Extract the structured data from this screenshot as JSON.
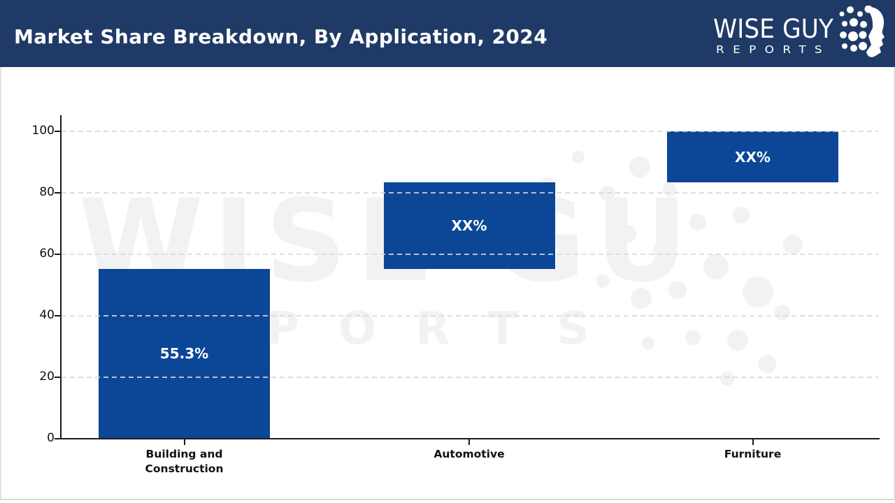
{
  "header": {
    "title": "Market Share Breakdown, By Application, 2024",
    "logo": {
      "brand": "WISE GUY",
      "sub": "REPORTS"
    }
  },
  "watermark": {
    "brand": "WISE GU",
    "sub": "REPORTS"
  },
  "chart_data": {
    "type": "bar",
    "subtype": "floating-waterfall",
    "title": "Market Share Breakdown, By Application, 2024",
    "categories": [
      "Building and Construction",
      "Automotive",
      "Furniture"
    ],
    "series": [
      {
        "name": "Market share (%)",
        "segments": [
          {
            "category": "Building and Construction",
            "from": 0,
            "to": 55.3,
            "label": "55.3%"
          },
          {
            "category": "Automotive",
            "from": 55.3,
            "to": 83.3,
            "label": "XX%"
          },
          {
            "category": "Furniture",
            "from": 83.3,
            "to": 100,
            "label": "XX%"
          }
        ]
      }
    ],
    "xlabel": "",
    "ylabel": "",
    "ylim": [
      0,
      105
    ],
    "y_ticks": [
      0,
      20,
      40,
      60,
      80,
      100
    ],
    "grid": "horizontal-dashed",
    "legend": "none",
    "bar_color": "#0b4697",
    "bar_label_color": "#ffffff"
  },
  "colors": {
    "header_bg": "#1f3a66",
    "bar_blue": "#0b4697",
    "grid_gray": "#d7d9db",
    "axis_black": "#1a1a1a",
    "watermark_gray": "#f2f2f3",
    "border_gray": "#d9d9d9",
    "white": "#ffffff"
  }
}
